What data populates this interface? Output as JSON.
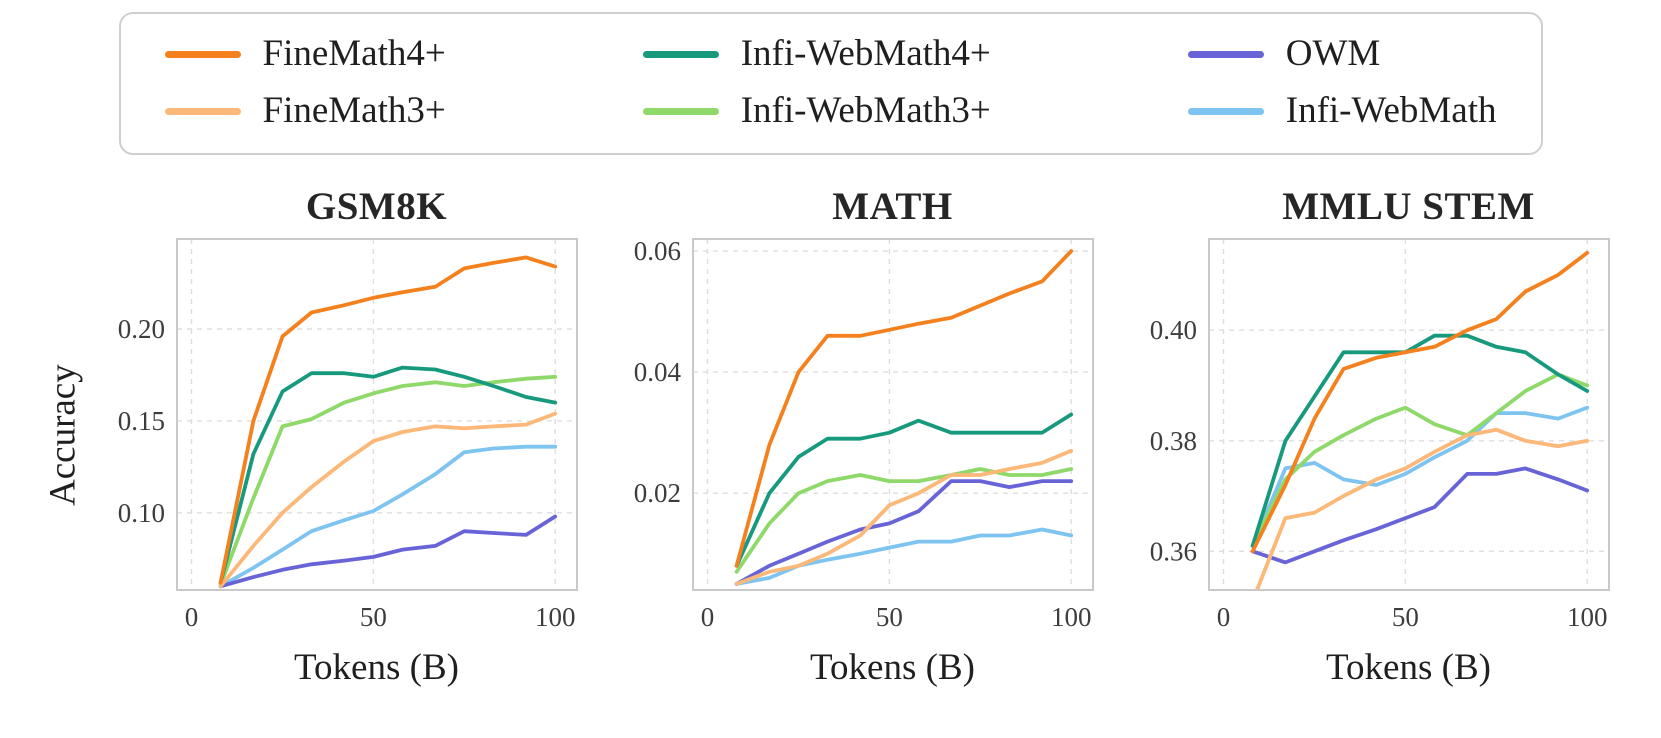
{
  "legend": {
    "items": [
      {
        "label": "FineMath4+",
        "color": "#f5811e"
      },
      {
        "label": "FineMath3+",
        "color": "#fbb878"
      },
      {
        "label": "Infi-WebMath4+",
        "color": "#17997d"
      },
      {
        "label": "Infi-WebMath3+",
        "color": "#8ed96a"
      },
      {
        "label": "OWM",
        "color": "#6864d8"
      },
      {
        "label": "Infi-WebMath",
        "color": "#7ec4f0"
      }
    ]
  },
  "chart_data": [
    {
      "type": "line",
      "title": "GSM8K",
      "xlabel": "Tokens (B)",
      "ylabel": "Accuracy",
      "xlim": [
        -4,
        106
      ],
      "ylim": [
        0.058,
        0.249
      ],
      "xticks": [
        0,
        50,
        100
      ],
      "xticklabels": [
        "0",
        "50",
        "100"
      ],
      "yticks": [
        0.1,
        0.15,
        0.2
      ],
      "yticklabels": [
        "0.10",
        "0.15",
        "0.20"
      ],
      "grid": true,
      "x": [
        8,
        17,
        25,
        33,
        42,
        50,
        58,
        67,
        75,
        83,
        92,
        100
      ],
      "series": [
        {
          "name": "FineMath4+",
          "color": "#f5811e",
          "values": [
            0.062,
            0.15,
            0.196,
            0.209,
            0.213,
            0.217,
            0.22,
            0.223,
            0.233,
            0.236,
            0.239,
            0.234
          ]
        },
        {
          "name": "FineMath3+",
          "color": "#fbb878",
          "values": [
            0.06,
            0.082,
            0.1,
            0.114,
            0.128,
            0.139,
            0.144,
            0.147,
            0.146,
            0.147,
            0.148,
            0.154
          ]
        },
        {
          "name": "Infi-WebMath4+",
          "color": "#17997d",
          "values": [
            0.062,
            0.132,
            0.166,
            0.176,
            0.176,
            0.174,
            0.179,
            0.178,
            0.174,
            0.169,
            0.163,
            0.16
          ]
        },
        {
          "name": "Infi-WebMath3+",
          "color": "#8ed96a",
          "values": [
            0.061,
            0.108,
            0.147,
            0.151,
            0.16,
            0.165,
            0.169,
            0.171,
            0.169,
            0.171,
            0.173,
            0.174
          ]
        },
        {
          "name": "OWM",
          "color": "#6864d8",
          "values": [
            0.06,
            0.065,
            0.069,
            0.072,
            0.074,
            0.076,
            0.08,
            0.082,
            0.09,
            0.089,
            0.088,
            0.098
          ]
        },
        {
          "name": "Infi-WebMath",
          "color": "#7ec4f0",
          "values": [
            0.06,
            0.07,
            0.08,
            0.09,
            0.096,
            0.101,
            0.11,
            0.121,
            0.133,
            0.135,
            0.136,
            0.136
          ]
        }
      ]
    },
    {
      "type": "line",
      "title": "MATH",
      "xlabel": "Tokens (B)",
      "ylabel": "",
      "xlim": [
        -4,
        106
      ],
      "ylim": [
        0.004,
        0.062
      ],
      "xticks": [
        0,
        50,
        100
      ],
      "xticklabels": [
        "0",
        "50",
        "100"
      ],
      "yticks": [
        0.02,
        0.04,
        0.06
      ],
      "yticklabels": [
        "0.02",
        "0.04",
        "0.06"
      ],
      "grid": true,
      "x": [
        8,
        17,
        25,
        33,
        42,
        50,
        58,
        67,
        75,
        83,
        92,
        100
      ],
      "series": [
        {
          "name": "FineMath4+",
          "color": "#f5811e",
          "values": [
            0.008,
            0.028,
            0.04,
            0.046,
            0.046,
            0.047,
            0.048,
            0.049,
            0.051,
            0.053,
            0.055,
            0.06
          ]
        },
        {
          "name": "FineMath3+",
          "color": "#fbb878",
          "values": [
            0.005,
            0.007,
            0.008,
            0.01,
            0.013,
            0.018,
            0.02,
            0.023,
            0.023,
            0.024,
            0.025,
            0.027
          ]
        },
        {
          "name": "Infi-WebMath4+",
          "color": "#17997d",
          "values": [
            0.008,
            0.02,
            0.026,
            0.029,
            0.029,
            0.03,
            0.032,
            0.03,
            0.03,
            0.03,
            0.03,
            0.033
          ]
        },
        {
          "name": "Infi-WebMath3+",
          "color": "#8ed96a",
          "values": [
            0.007,
            0.015,
            0.02,
            0.022,
            0.023,
            0.022,
            0.022,
            0.023,
            0.024,
            0.023,
            0.023,
            0.024
          ]
        },
        {
          "name": "OWM",
          "color": "#6864d8",
          "values": [
            0.005,
            0.008,
            0.01,
            0.012,
            0.014,
            0.015,
            0.017,
            0.022,
            0.022,
            0.021,
            0.022,
            0.022
          ]
        },
        {
          "name": "Infi-WebMath",
          "color": "#7ec4f0",
          "values": [
            0.005,
            0.006,
            0.008,
            0.009,
            0.01,
            0.011,
            0.012,
            0.012,
            0.013,
            0.013,
            0.014,
            0.013
          ]
        }
      ]
    },
    {
      "type": "line",
      "title": "MMLU STEM",
      "xlabel": "Tokens (B)",
      "ylabel": "",
      "xlim": [
        -4,
        106
      ],
      "ylim": [
        0.353,
        0.4165
      ],
      "xticks": [
        0,
        50,
        100
      ],
      "xticklabels": [
        "0",
        "50",
        "100"
      ],
      "yticks": [
        0.36,
        0.38,
        0.4
      ],
      "yticklabels": [
        "0.36",
        "0.38",
        "0.40"
      ],
      "grid": true,
      "x": [
        8,
        17,
        25,
        33,
        42,
        50,
        58,
        67,
        75,
        83,
        92,
        100
      ],
      "series": [
        {
          "name": "FineMath4+",
          "color": "#f5811e",
          "values": [
            0.36,
            0.372,
            0.384,
            0.393,
            0.395,
            0.396,
            0.397,
            0.4,
            0.402,
            0.407,
            0.41,
            0.414
          ]
        },
        {
          "name": "FineMath3+",
          "color": "#fbb878",
          "values": [
            0.351,
            0.366,
            0.367,
            0.37,
            0.373,
            0.375,
            0.378,
            0.381,
            0.382,
            0.38,
            0.379,
            0.38
          ]
        },
        {
          "name": "Infi-WebMath4+",
          "color": "#17997d",
          "values": [
            0.361,
            0.38,
            0.388,
            0.396,
            0.396,
            0.396,
            0.399,
            0.399,
            0.397,
            0.396,
            0.392,
            0.389
          ]
        },
        {
          "name": "Infi-WebMath3+",
          "color": "#8ed96a",
          "values": [
            0.361,
            0.373,
            0.378,
            0.381,
            0.384,
            0.386,
            0.383,
            0.381,
            0.385,
            0.389,
            0.392,
            0.39
          ]
        },
        {
          "name": "OWM",
          "color": "#6864d8",
          "values": [
            0.36,
            0.358,
            0.36,
            0.362,
            0.364,
            0.366,
            0.368,
            0.374,
            0.374,
            0.375,
            0.373,
            0.371
          ]
        },
        {
          "name": "Infi-WebMath",
          "color": "#7ec4f0",
          "values": [
            0.361,
            0.375,
            0.376,
            0.373,
            0.372,
            0.374,
            0.377,
            0.38,
            0.385,
            0.385,
            0.384,
            0.386
          ]
        }
      ]
    }
  ]
}
